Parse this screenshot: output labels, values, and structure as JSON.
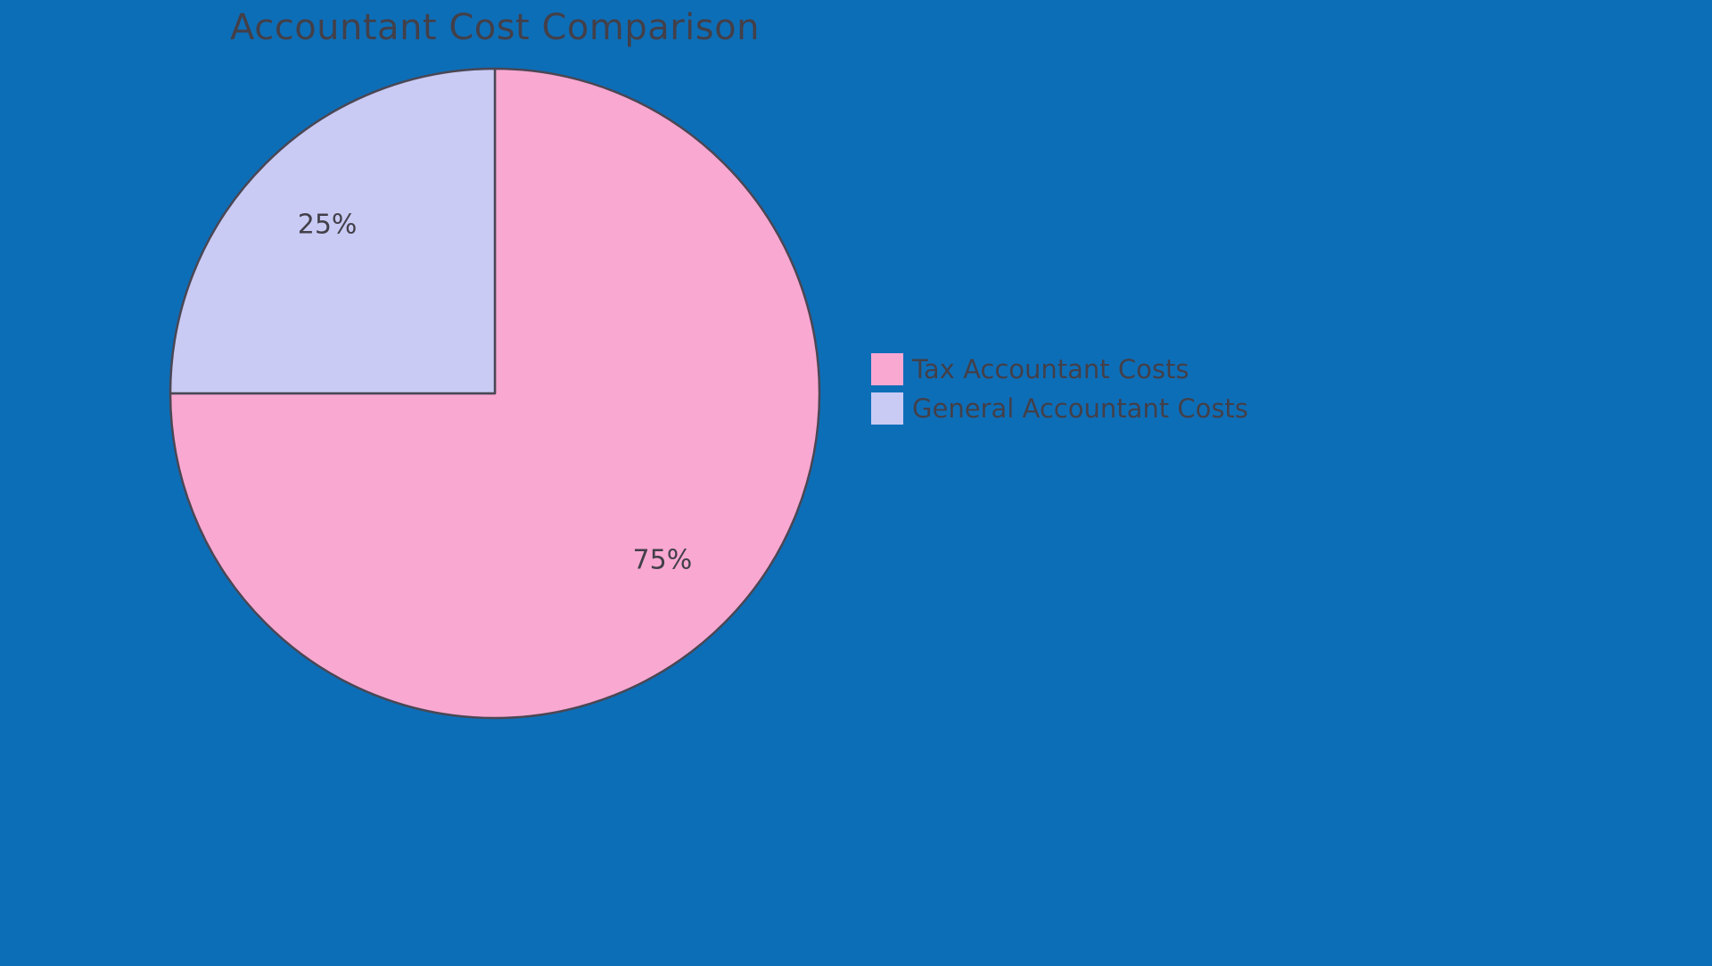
{
  "chart_data": {
    "type": "pie",
    "title": "Accountant Cost Comparison",
    "labels": [
      "Tax Accountant Costs",
      "General Accountant Costs"
    ],
    "values": [
      75,
      25
    ],
    "slice_labels": [
      "75%",
      "25%"
    ],
    "colors": [
      "#F9A8D2",
      "#C9CBF5"
    ],
    "start_angle": "top",
    "direction": "clockwise",
    "legend_position": "right",
    "background_color": "#0D6EB8",
    "stroke_color": "#4A4754",
    "text_color": "#434049"
  }
}
